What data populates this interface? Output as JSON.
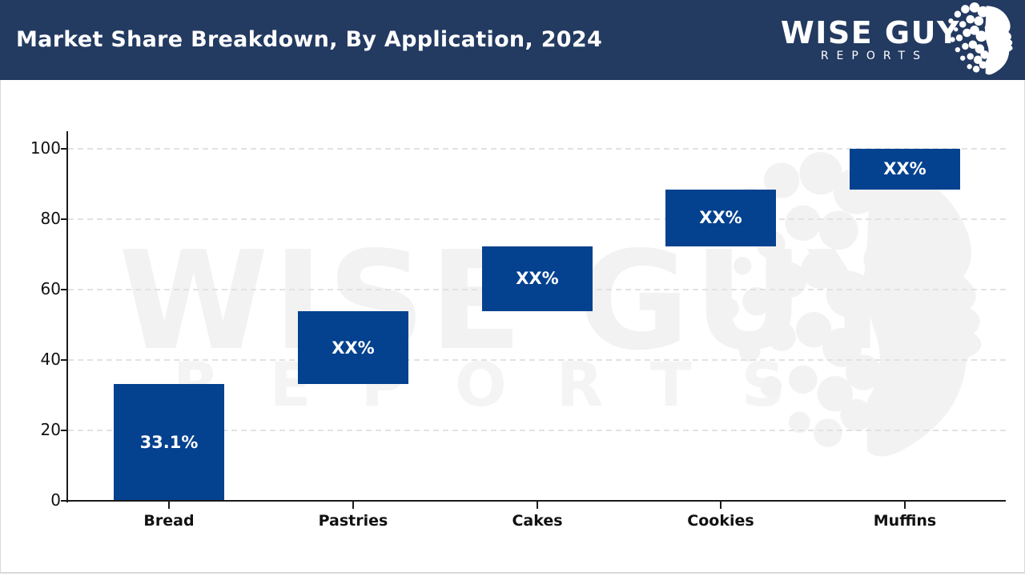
{
  "header": {
    "title": "Market Share Breakdown, By Application, 2024",
    "logo": {
      "line1": "WISE GUY",
      "line2": "REPORTS"
    }
  },
  "watermark": {
    "line1": "WISE GUY",
    "line2": "REPORTS"
  },
  "chart_data": {
    "type": "bar",
    "subtype": "waterfall",
    "title": "Market Share Breakdown, By Application, 2024",
    "xlabel": "",
    "ylabel": "",
    "categories": [
      "Bread",
      "Pastries",
      "Cakes",
      "Cookies",
      "Muffins"
    ],
    "segments": [
      {
        "category": "Bread",
        "start": 0,
        "end": 33.1,
        "label": "33.1%"
      },
      {
        "category": "Pastries",
        "start": 33.1,
        "end": 53.9,
        "label": "XX%"
      },
      {
        "category": "Cakes",
        "start": 53.9,
        "end": 72.3,
        "label": "XX%"
      },
      {
        "category": "Cookies",
        "start": 72.3,
        "end": 88.5,
        "label": "XX%"
      },
      {
        "category": "Muffins",
        "start": 88.5,
        "end": 100,
        "label": "XX%"
      }
    ],
    "yticks": [
      0,
      20,
      40,
      60,
      80,
      100
    ],
    "ylim": [
      0,
      105
    ],
    "grid": true,
    "gridline_style": "dashed",
    "legend": "none",
    "bar_color": "#04418f",
    "bar_label_color": "#ffffff",
    "axis_color": "#1a1a1a",
    "header_color": "#233a61"
  }
}
